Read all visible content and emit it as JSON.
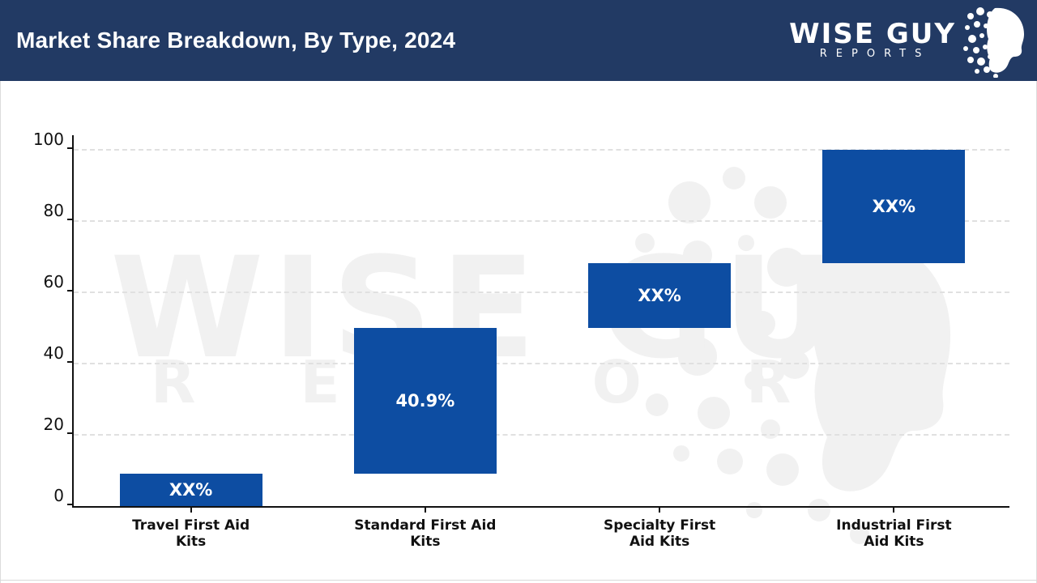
{
  "header": {
    "title": "Market Share Breakdown, By Type, 2024",
    "logo": {
      "line1": "WISE GUY",
      "line2": "REPORTS"
    }
  },
  "watermark": {
    "line1": "WISE GU",
    "line2": "R E P O R T S"
  },
  "colors": {
    "header_bg": "#223a64",
    "bar": "#0d4da2",
    "bar_label": "#ffffff",
    "gridline": "#e0e0e0",
    "axis": "#111111",
    "watermark": "#f1f1f1"
  },
  "chart_data": {
    "type": "bar",
    "subtype": "floating-segment-waterfall",
    "title": "Market Share Breakdown, By Type, 2024",
    "categories": [
      "Travel First Aid\nKits",
      "Standard First Aid\nKits",
      "Specialty First\nAid Kits",
      "Industrial First\nAid Kits"
    ],
    "segments": [
      {
        "from": 0,
        "to": 9.1,
        "label": "XX%"
      },
      {
        "from": 9.1,
        "to": 50,
        "label": "40.9%"
      },
      {
        "from": 50,
        "to": 68.2,
        "label": "XX%"
      },
      {
        "from": 68.2,
        "to": 100,
        "label": "XX%"
      }
    ],
    "yticks": [
      0,
      20,
      40,
      60,
      80,
      100
    ],
    "ylim": [
      0,
      104.5
    ],
    "xlabel": "",
    "ylabel": "",
    "grid": {
      "axis": "y",
      "style": "dashed"
    },
    "legend": "none",
    "bar_color": "#0d4da2",
    "bar_label_color": "#ffffff"
  }
}
